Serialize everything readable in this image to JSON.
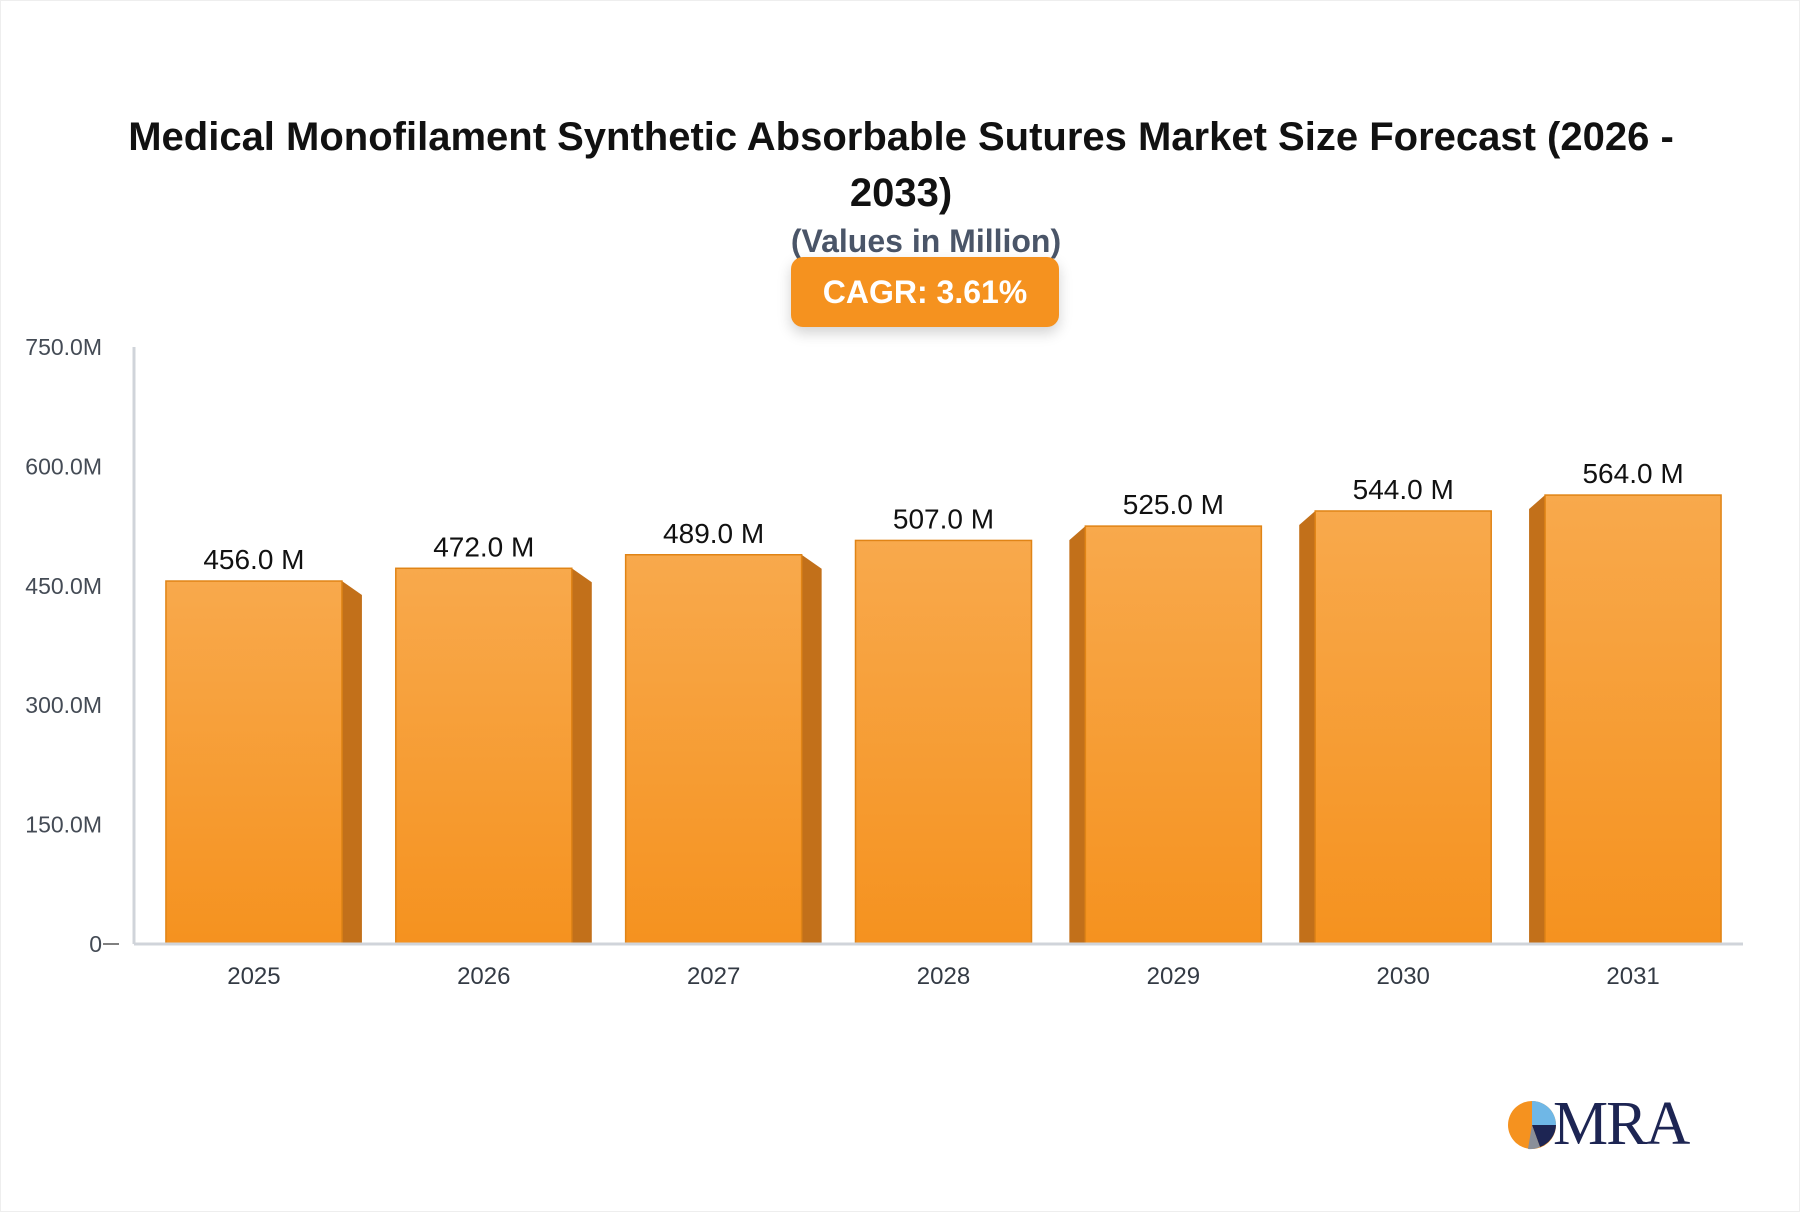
{
  "header": {
    "title": "Medical Monofilament Synthetic Absorbable Sutures Market Size Forecast (2026 - 2033)",
    "subtitle": "(Values in Million)",
    "cagr_label": "CAGR: 3.61%"
  },
  "logo": {
    "text": "MRA"
  },
  "colors": {
    "bar_front_top": "#f8a94c",
    "bar_front_bottom": "#f5921f",
    "bar_side": "#c2701a",
    "bar_outline": "#e08416",
    "axis": "#d0d4da",
    "badge": "#f5921f"
  },
  "chart_data": {
    "type": "bar",
    "categories": [
      "2025",
      "2026",
      "2027",
      "2028",
      "2029",
      "2030",
      "2031"
    ],
    "values": [
      456.0,
      472.0,
      489.0,
      507.0,
      525.0,
      544.0,
      564.0
    ],
    "data_labels": [
      "456.0 M",
      "472.0 M",
      "489.0 M",
      "507.0 M",
      "525.0 M",
      "544.0 M",
      "564.0 M"
    ],
    "yticks": [
      0,
      150,
      300,
      450,
      600,
      750
    ],
    "ytick_labels": [
      "0",
      "150.0M",
      "300.0M",
      "450.0M",
      "600.0M",
      "750.0M"
    ],
    "ylim": [
      0,
      750
    ],
    "title": "Medical Monofilament Synthetic Absorbable Sutures Market Size Forecast (2026 - 2033)",
    "subtitle": "(Values in Million)",
    "xlabel": "",
    "ylabel": "",
    "grid": false,
    "legend": "none"
  }
}
